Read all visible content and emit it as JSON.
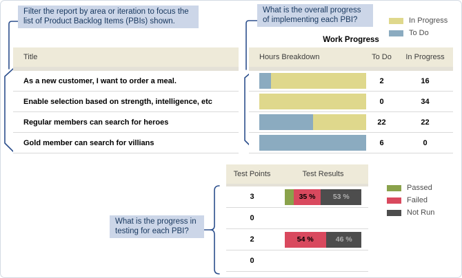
{
  "colors": {
    "in_progress": "#DFD88C",
    "to_do": "#8BABC0",
    "passed": "#8AA24B",
    "failed": "#D9495E",
    "not_run": "#4D4D4D",
    "callout_bg": "#CCD6E8",
    "callout_text": "#17375E",
    "connector": "#2B4E8C",
    "header_bg": "#EEEAD9"
  },
  "callouts": {
    "filter": "Filter the report by area or iteration to focus the list of Product Backlog Items (PBIs) shown.",
    "overall_progress": "What is the overall progress of implementing each PBI?",
    "testing_progress": "What is the progress in testing for each PBI?"
  },
  "work_progress": {
    "section_title": "Work Progress",
    "legend": [
      {
        "label": "In Progress",
        "color_key": "in_progress"
      },
      {
        "label": "To Do",
        "color_key": "to_do"
      }
    ],
    "columns": {
      "title": "Title",
      "hours_breakdown": "Hours Breakdown",
      "to_do": "To Do",
      "in_progress": "In Progress"
    },
    "rows": [
      {
        "title": "As a new customer, I want to order a meal.",
        "to_do": "2",
        "in_progress": "16"
      },
      {
        "title": "Enable selection based on strength, intelligence, etc",
        "to_do": "0",
        "in_progress": "34"
      },
      {
        "title": "Regular members can search for heroes",
        "to_do": "22",
        "in_progress": "22"
      },
      {
        "title": "Gold member can search for villians",
        "to_do": "6",
        "in_progress": "0"
      }
    ]
  },
  "testing": {
    "columns": {
      "test_points": "Test Points",
      "test_results": "Test Results"
    },
    "legend": [
      {
        "label": "Passed",
        "color_key": "passed"
      },
      {
        "label": "Failed",
        "color_key": "failed"
      },
      {
        "label": "Not Run",
        "color_key": "not_run"
      }
    ],
    "rows": [
      {
        "test_points": "3",
        "segments": [
          {
            "status": "passed",
            "pct": 12,
            "label": ""
          },
          {
            "status": "failed",
            "pct": 35,
            "label": "35 %"
          },
          {
            "status": "not_run",
            "pct": 53,
            "label": "53 %"
          }
        ]
      },
      {
        "test_points": "0",
        "segments": []
      },
      {
        "test_points": "2",
        "segments": [
          {
            "status": "failed",
            "pct": 54,
            "label": "54 %"
          },
          {
            "status": "not_run",
            "pct": 46,
            "label": "46 %"
          }
        ]
      },
      {
        "test_points": "0",
        "segments": []
      }
    ]
  }
}
